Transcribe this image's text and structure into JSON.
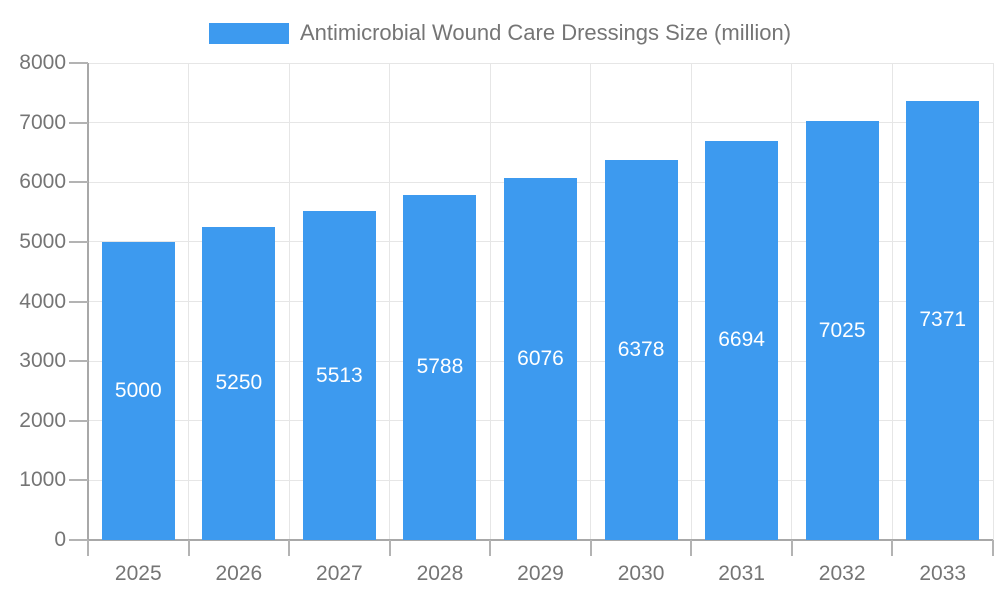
{
  "chart_data": {
    "type": "bar",
    "title": "",
    "legend_entries": [
      "Antimicrobial Wound Care Dressings Size (million)"
    ],
    "legend_position": "top-center",
    "categories": [
      "2025",
      "2026",
      "2027",
      "2028",
      "2029",
      "2030",
      "2031",
      "2032",
      "2033"
    ],
    "series": [
      {
        "name": "Antimicrobial Wound Care Dressings Size (million)",
        "values": [
          5000,
          5250,
          5513,
          5788,
          6076,
          6378,
          6694,
          7025,
          7371
        ]
      }
    ],
    "bar_value_labels": [
      "5000",
      "5250",
      "5513",
      "5788",
      "6076",
      "6378",
      "6694",
      "7025",
      "7371"
    ],
    "xlabel": "",
    "ylabel": "",
    "ylim": [
      0,
      8000
    ],
    "y_ticks": [
      0,
      1000,
      2000,
      3000,
      4000,
      5000,
      6000,
      7000,
      8000
    ],
    "grid": true,
    "colors": {
      "bar": "#3D9AEF",
      "bar_label_text": "#ffffff",
      "axis_text": "#757575",
      "axis_line": "#a8a8a8",
      "grid_line": "#e6e6e6",
      "tick_mark": "#b3b3b3",
      "background": "#ffffff"
    }
  }
}
